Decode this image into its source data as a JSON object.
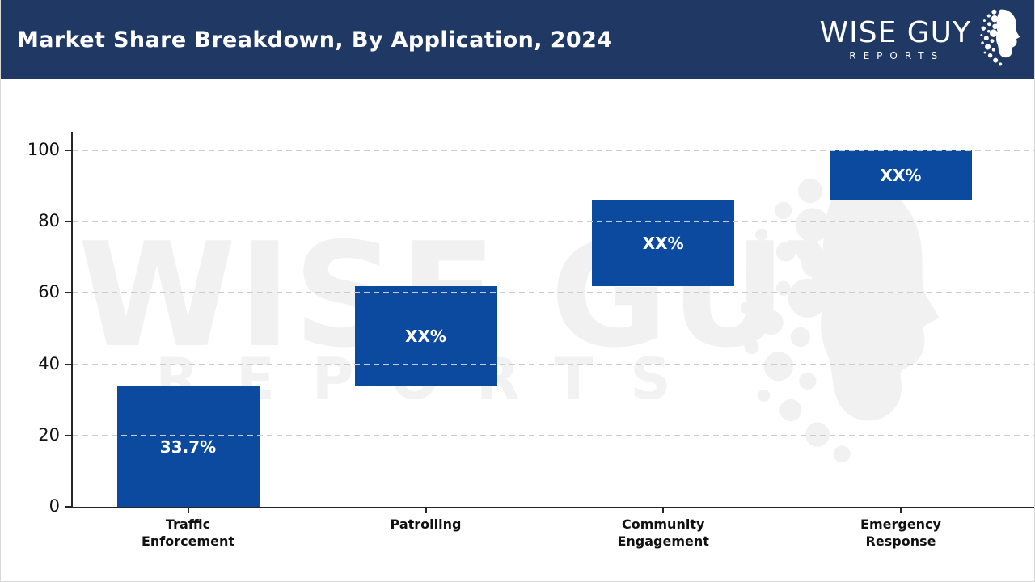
{
  "header": {
    "title": "Market Share Breakdown, By Application, 2024",
    "logo": {
      "line1": "WISE GUY",
      "line2": "REPORTS"
    }
  },
  "watermark": {
    "line1": "WISE GUY",
    "line2": "REPORTS"
  },
  "colors": {
    "header_bg": "#203864",
    "bar": "#0b4a9e",
    "bar_label": "#ffffff",
    "grid": "#cccccc",
    "axis": "#262626",
    "page_border": "#d9d9d9",
    "watermark": "#f1f1f1"
  },
  "chart_data": {
    "type": "bar",
    "subtype": "waterfall",
    "title": "Market Share Breakdown, By Application, 2024",
    "xlabel": "",
    "ylabel": "",
    "categories": [
      "Traffic\nEnforcement",
      "Patrolling",
      "Community\nEngagement",
      "Emergency Response"
    ],
    "segments": [
      {
        "category": "Traffic Enforcement",
        "start": 0,
        "end": 33.7,
        "value": 33.7,
        "label": "33.7%"
      },
      {
        "category": "Patrolling",
        "start": 33.7,
        "end": 61.8,
        "value": 28.1,
        "label": "XX%"
      },
      {
        "category": "Community Engagement",
        "start": 61.8,
        "end": 85.9,
        "value": 24.1,
        "label": "XX%"
      },
      {
        "category": "Emergency Response",
        "start": 85.9,
        "end": 100,
        "value": 14.1,
        "label": "XX%"
      }
    ],
    "yticks": [
      0,
      20,
      40,
      60,
      80,
      100
    ],
    "ylim": [
      0,
      105
    ],
    "grid": "horizontal-dashed-over-bars",
    "legend": "none"
  }
}
